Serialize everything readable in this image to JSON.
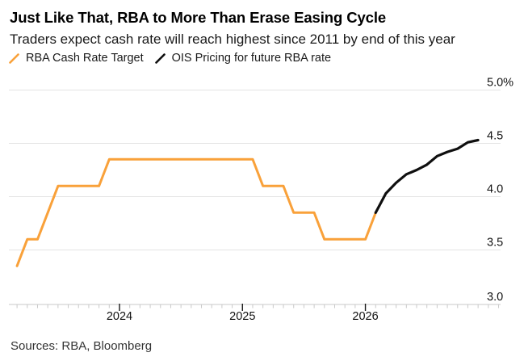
{
  "header": {
    "title": "Just Like That, RBA to More Than Erase Easing Cycle",
    "subtitle": "Traders expect cash rate will reach highest since 2011 by end of this year"
  },
  "chart_data": {
    "type": "line",
    "title": "Just Like That, RBA to More Than Erase Easing Cycle",
    "subtitle": "Traders expect cash rate will reach highest since 2011 by end of this year",
    "unit": "%",
    "ylim": [
      3.0,
      5.0
    ],
    "grid": true,
    "legend_position": "top",
    "y_axis": {
      "side": "right",
      "ticks": [
        {
          "value": 5.0,
          "label": "5.0%"
        },
        {
          "value": 4.5,
          "label": "4.5"
        },
        {
          "value": 4.0,
          "label": "4.0"
        },
        {
          "value": 3.5,
          "label": "3.5"
        },
        {
          "value": 3.0,
          "label": "3.0"
        }
      ]
    },
    "x_axis": {
      "minor_ticks": "monthly",
      "minor_range": [
        "2023-03",
        "2027-02"
      ],
      "ticks": [
        {
          "month": "2024-01",
          "label": "2024"
        },
        {
          "month": "2025-01",
          "label": "2025"
        },
        {
          "month": "2026-01",
          "label": "2026"
        }
      ]
    },
    "series": [
      {
        "name": "RBA Cash Rate Target",
        "color": "#F9A13A",
        "frequency": "monthly",
        "start": "2023-02",
        "values": [
          3.35,
          3.6,
          3.6,
          3.85,
          4.1,
          4.1,
          4.1,
          4.1,
          4.1,
          4.35,
          4.35,
          4.35,
          4.35,
          4.35,
          4.35,
          4.35,
          4.35,
          4.35,
          4.35,
          4.35,
          4.35,
          4.35,
          4.35,
          4.35,
          4.1,
          4.1,
          4.1,
          3.85,
          3.85,
          3.85,
          3.6,
          3.6,
          3.6,
          3.6,
          3.6,
          3.85
        ]
      },
      {
        "name": "OIS Pricing for future RBA rate",
        "color": "#0F0F0F",
        "frequency": "monthly",
        "start": "2026-01",
        "values": [
          3.85,
          4.03,
          4.13,
          4.21,
          4.25,
          4.3,
          4.38,
          4.42,
          4.45,
          4.51,
          4.53
        ]
      }
    ]
  },
  "footer": {
    "sources": "Sources: RBA, Bloomberg"
  }
}
